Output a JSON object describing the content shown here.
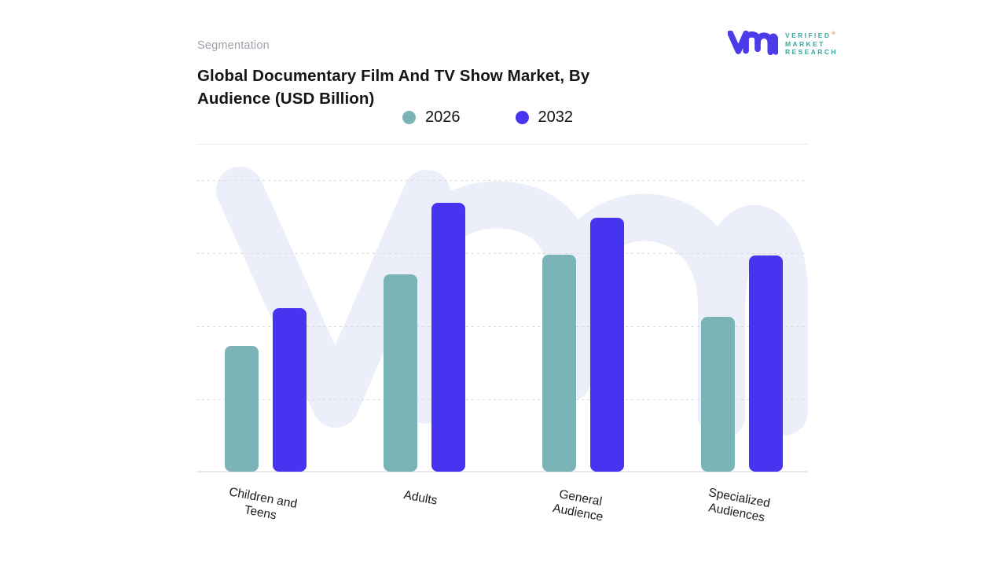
{
  "header": {
    "eyebrow": "Segmentation",
    "title_lines": [
      "Global Documentary Film And TV Show Market, By",
      "Audience (USD Billion)"
    ]
  },
  "legend": {
    "items": [
      {
        "label": "2026",
        "color": "#7ab4b7"
      },
      {
        "label": "2032",
        "color": "#4634f1"
      }
    ]
  },
  "logo": {
    "glyph": "vmr-monogram",
    "brand_lines": [
      "VERIFIED",
      "MARKET",
      "RESEARCH"
    ],
    "registered_mark": "®",
    "glyph_color": "#4b3be9",
    "text_color": "#38a79d"
  },
  "chart_data": {
    "type": "bar",
    "title": "Global Documentary Film And TV Show Market, By Audience (USD Billion)",
    "subtitle": "Segmentation",
    "categories": [
      "Children and Teens",
      "Adults",
      "General Audience",
      "Specialized Audiences"
    ],
    "tick_labels": [
      "Children and\nTeens",
      "Adults",
      "General\nAudience",
      "Specialized\nAudiences"
    ],
    "series": [
      {
        "name": "2026",
        "color": "#7ab4b7",
        "values": [
          1.72,
          2.7,
          2.97,
          2.12
        ]
      },
      {
        "name": "2032",
        "color": "#4634f1",
        "values": [
          2.24,
          3.68,
          3.47,
          2.96
        ]
      }
    ],
    "xlabel": "",
    "ylabel": "",
    "ylim": [
      0,
      4
    ],
    "y_axis_tick_labels_visible": false,
    "values_unit": "relative units estimated from unlabeled dashed gridlines (1 unit per gridline)",
    "grid": "horizontal dashed lines, solid baseline",
    "legend_position": "top-center",
    "watermark": "vmr-monogram-light"
  }
}
